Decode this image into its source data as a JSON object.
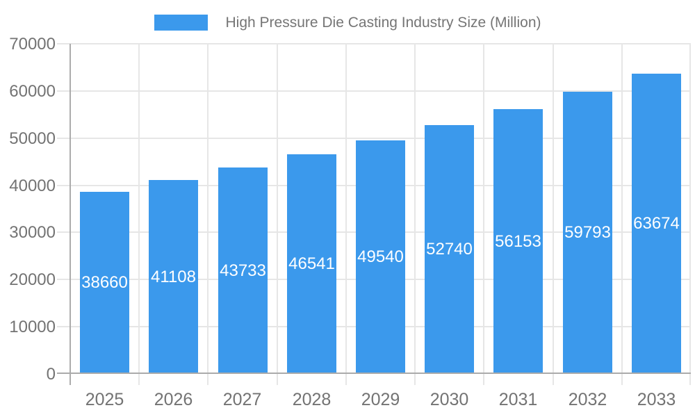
{
  "chart_data": {
    "type": "bar",
    "title": "High Pressure Die Casting Industry Size (Million)",
    "categories": [
      "2025",
      "2026",
      "2027",
      "2028",
      "2029",
      "2030",
      "2031",
      "2032",
      "2033"
    ],
    "values": [
      38660,
      41108,
      43733,
      46541,
      49540,
      52740,
      56153,
      59793,
      63674
    ],
    "xlabel": "",
    "ylabel": "",
    "ylim": [
      0,
      70000
    ],
    "ytick_step": 10000,
    "yticks": [
      0,
      10000,
      20000,
      30000,
      40000,
      50000,
      60000,
      70000
    ],
    "grid": true,
    "legend_position": "top",
    "colors": {
      "bar": "#3B99EC",
      "grid": "#E6E6E6",
      "axis": "#ABABAB",
      "tick_label": "#737373",
      "legend_text": "#757575",
      "value_label": "#FFFFFF",
      "background": "#FFFFFF"
    }
  }
}
